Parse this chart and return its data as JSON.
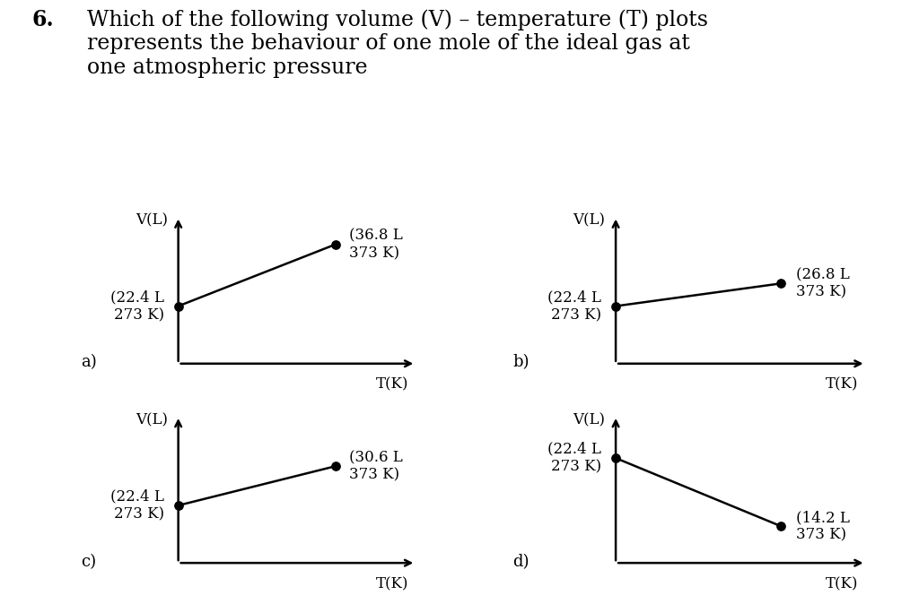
{
  "title_number": "6.",
  "title_text": "Which of the following volume (V) – temperature (T) plots\nrepresents the behaviour of one mole of the ideal gas at\none atmospheric pressure",
  "background_color": "#ffffff",
  "text_color": "#000000",
  "plots": [
    {
      "label": "a)",
      "point1_T": 273,
      "point1_V": 22.4,
      "point2_T": 373,
      "point2_V": 36.8,
      "label1": "(22.4 L\n273 K)",
      "label2": "(36.8 L\n373 K)"
    },
    {
      "label": "b)",
      "point1_T": 273,
      "point1_V": 22.4,
      "point2_T": 373,
      "point2_V": 26.8,
      "label1": "(22.4 L\n273 K)",
      "label2": "(26.8 L\n373 K)"
    },
    {
      "label": "c)",
      "point1_T": 273,
      "point1_V": 22.4,
      "point2_T": 373,
      "point2_V": 30.6,
      "label1": "(22.4 L\n273 K)",
      "label2": "(30.6 L\n373 K)"
    },
    {
      "label": "d)",
      "point1_T": 273,
      "point1_V": 22.4,
      "point2_T": 373,
      "point2_V": 14.2,
      "label1": "(22.4 L\n273 K)",
      "label2": "(14.2 L\n373 K)"
    }
  ],
  "axis_label_x": "T(K)",
  "axis_label_y": "V(L)",
  "font_size_title_num": 17,
  "font_size_title": 17,
  "font_size_labels": 12,
  "font_size_axis": 12,
  "font_size_plot_label": 13,
  "line_color": "#000000",
  "dot_color": "#000000",
  "dot_size": 45,
  "arrow_lw": 1.8
}
